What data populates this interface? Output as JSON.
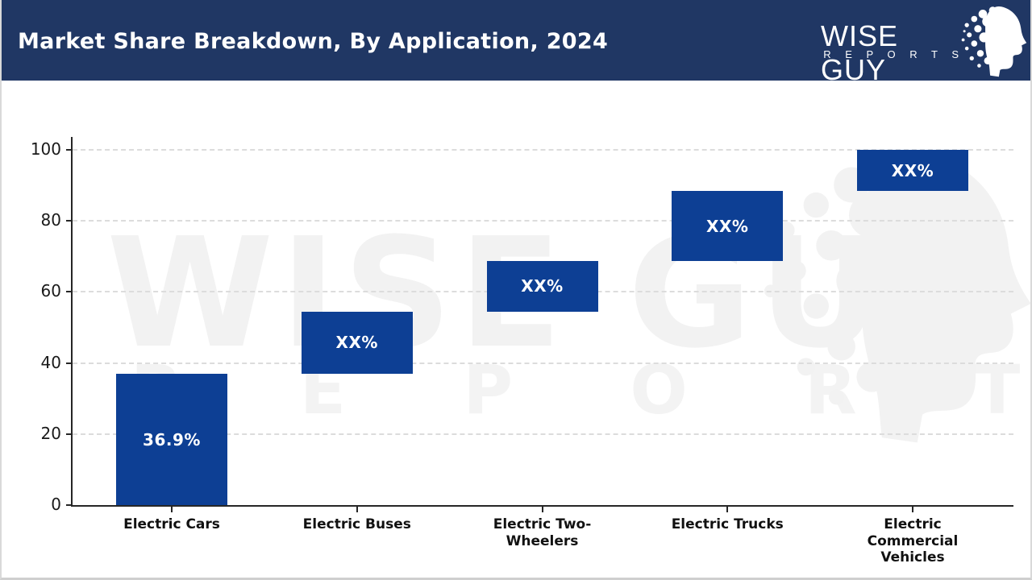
{
  "header": {
    "title": "Market Share Breakdown, By Application, 2024",
    "logo": {
      "name_line": "WISE GUY",
      "reports_line": "R E P O R T S"
    }
  },
  "watermark": {
    "name_line": "WISE GUY",
    "reports_line": "R E P O R T S"
  },
  "chart_data": {
    "type": "bar",
    "subtype": "waterfall",
    "title": "Market Share Breakdown, By Application, 2024",
    "xlabel": "",
    "ylabel": "",
    "ylim": [
      0,
      105
    ],
    "yticks": [
      0,
      20,
      40,
      60,
      80,
      100
    ],
    "grid": "horizontal-dashed",
    "legend": "none",
    "bar_color": "#0d3f94",
    "bar_label_color": "#ffffff",
    "categories": [
      "Electric Cars",
      "Electric Buses",
      "Electric Two-Wheelers",
      "Electric Trucks",
      "Electric Commercial Vehicles"
    ],
    "segments": [
      {
        "category": "Electric Cars",
        "start": 0,
        "end": 36.9,
        "label": "36.9%"
      },
      {
        "category": "Electric Buses",
        "start": 36.9,
        "end": 54.5,
        "label": "XX%"
      },
      {
        "category": "Electric Two-Wheelers",
        "start": 54.5,
        "end": 68.7,
        "label": "XX%"
      },
      {
        "category": "Electric Trucks",
        "start": 68.7,
        "end": 88.4,
        "label": "XX%"
      },
      {
        "category": "Electric Commercial Vehicles",
        "start": 88.4,
        "end": 100,
        "label": "XX%"
      }
    ]
  }
}
